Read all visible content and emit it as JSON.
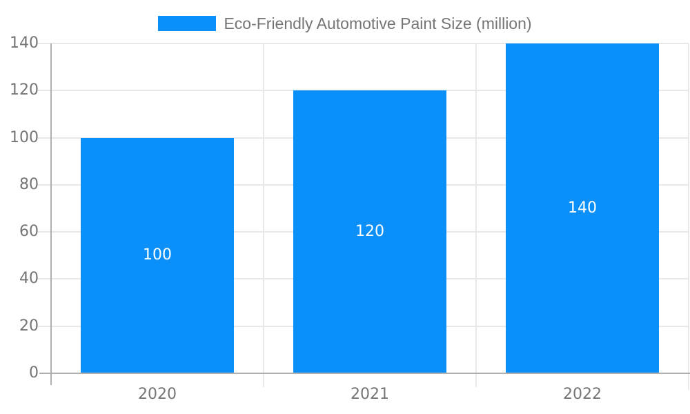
{
  "chart_data": {
    "type": "bar",
    "title": "Eco-Friendly Automotive Paint Size (million)",
    "categories": [
      "2020",
      "2021",
      "2022"
    ],
    "values": [
      100,
      120,
      140
    ],
    "series": [
      {
        "name": "Eco-Friendly Automotive Paint Size (million)",
        "values": [
          100,
          120,
          140
        ]
      }
    ],
    "xlabel": "",
    "ylabel": "",
    "ylim": [
      0,
      140
    ],
    "yticks": [
      0,
      20,
      40,
      60,
      80,
      100,
      120,
      140
    ],
    "grid": true,
    "legend_position": "top-center",
    "bar_labels_visible": true,
    "colors": {
      "bar": "#0a90f8",
      "bar_value_label": "#ffffff",
      "grid": "#e8e8e8",
      "axis": "#b0b0b0",
      "tick_text": "#757575"
    }
  }
}
